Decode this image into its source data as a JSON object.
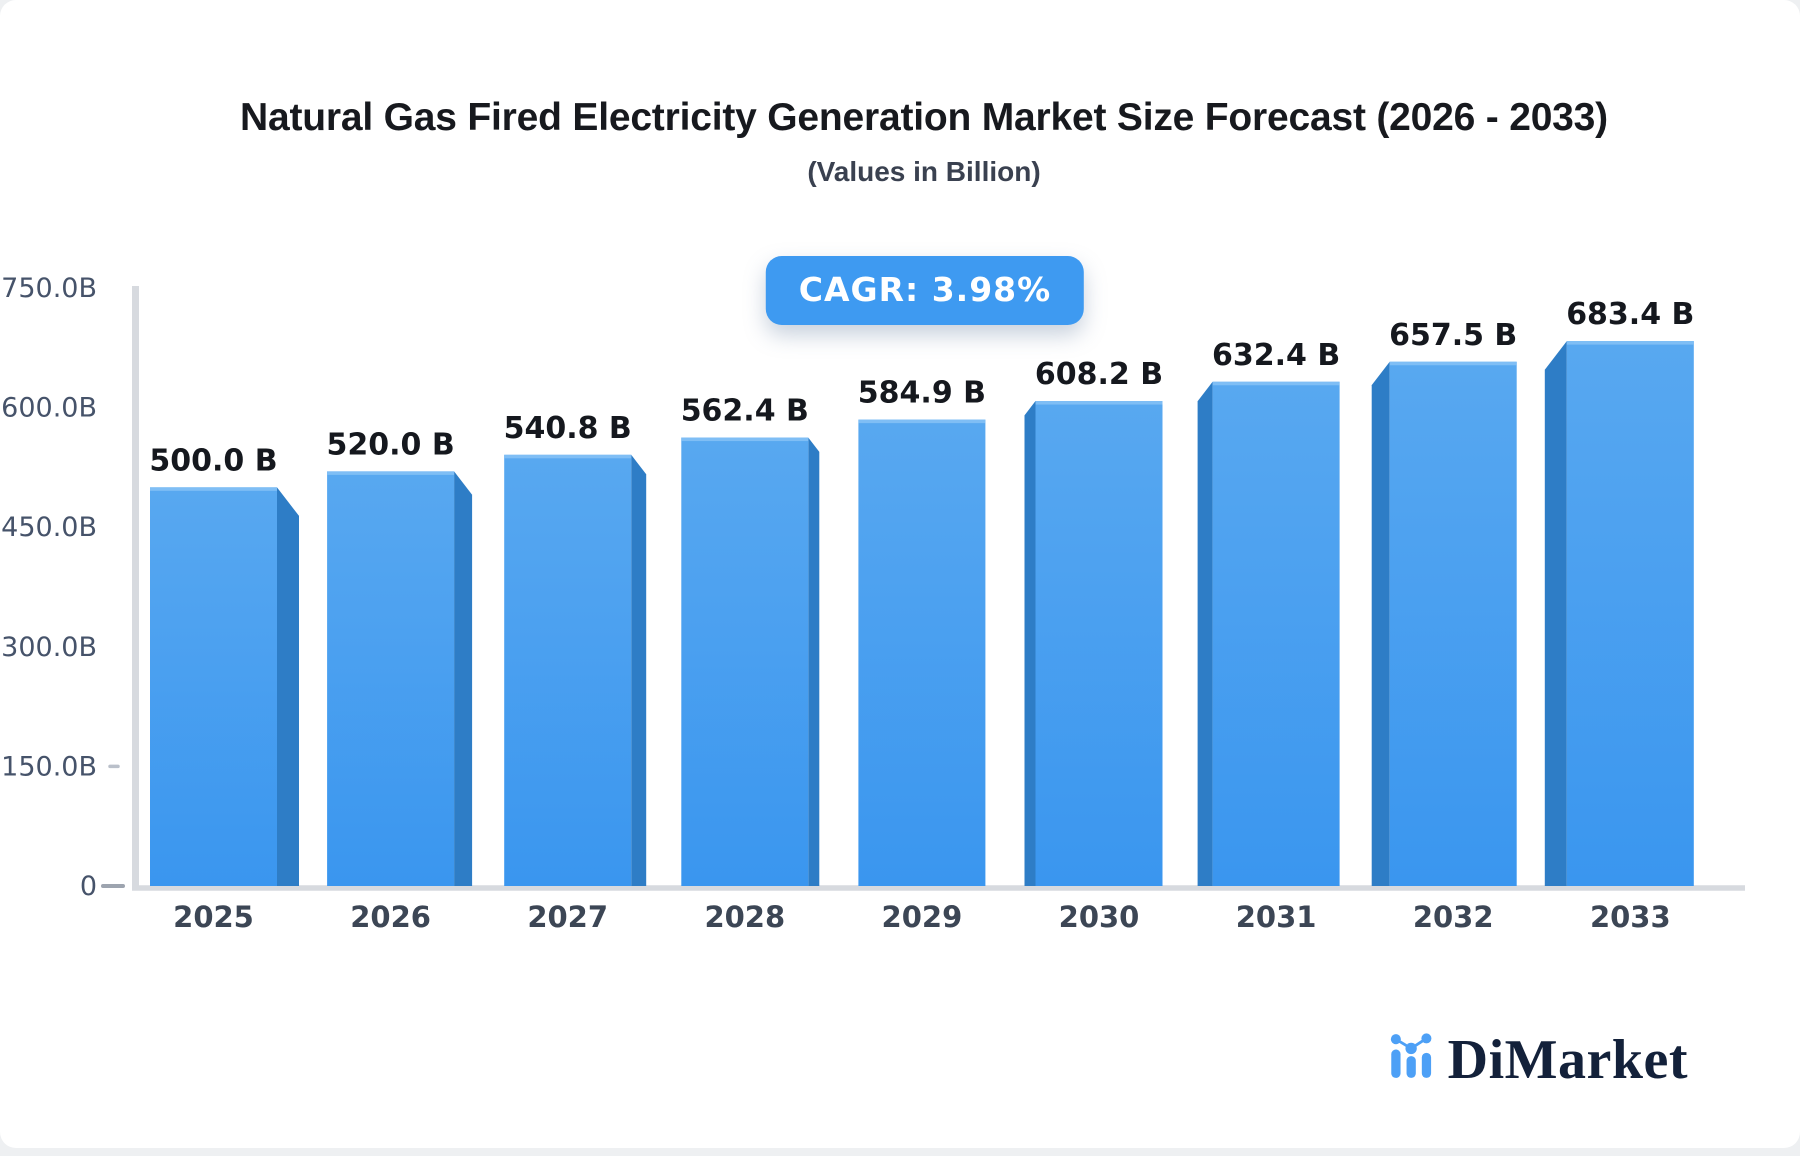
{
  "header": {
    "title": "Natural Gas Fired Electricity Generation Market Size Forecast (2026 - 2033)",
    "subtitle": "(Values in Billion)",
    "cagr_badge": "CAGR: 3.98%"
  },
  "brand": {
    "name": "DiMarket",
    "icon": "mini-bar-line-chart-icon"
  },
  "colors": {
    "bar_face_top": "#58A8F0",
    "bar_face_bottom": "#3A96EF",
    "bar_top_highlight": "#7FBEF5",
    "bar_side": "#2E7DC6",
    "axis_line": "#D7DADF",
    "tick_dash": "#9DA4AF",
    "tick_dash_minor": "#BAC0CA",
    "tick_text": "#46536A",
    "year_text": "#3C4655",
    "value_text": "#15181E",
    "badge_bg": "#3E9AF1",
    "badge_text": "#FFFFFF",
    "title_text": "#17191E",
    "subtitle_text": "#3A4150",
    "brand_navy": "#13213A",
    "brand_blue": "#4DA0F6"
  },
  "chart_data": {
    "type": "bar",
    "title": "Natural Gas Fired Electricity Generation Market Size Forecast (2026 - 2033)",
    "subtitle": "(Values in Billion)",
    "cagr_percent": 3.98,
    "categories": [
      "2025",
      "2026",
      "2027",
      "2028",
      "2029",
      "2030",
      "2031",
      "2032",
      "2033"
    ],
    "values": [
      500.0,
      520.0,
      540.8,
      562.4,
      584.9,
      608.2,
      632.4,
      657.5,
      683.4
    ],
    "value_labels": [
      "500.0 B",
      "520.0 B",
      "540.8 B",
      "562.4 B",
      "584.9 B",
      "608.2 B",
      "632.4 B",
      "657.5 B",
      "683.4 B"
    ],
    "y_ticks": [
      {
        "value": 750,
        "label": "750.0B"
      },
      {
        "value": 600,
        "label": "600.0B"
      },
      {
        "value": 450,
        "label": "450.0B"
      },
      {
        "value": 300,
        "label": "300.0B"
      },
      {
        "value": 150,
        "label": "150.0B"
      },
      {
        "value": 0,
        "label": "0"
      }
    ],
    "ylim": [
      0,
      750
    ],
    "xlabel": "",
    "ylabel": "",
    "grid": false,
    "legend": false,
    "style": "3d-bars-blue"
  }
}
